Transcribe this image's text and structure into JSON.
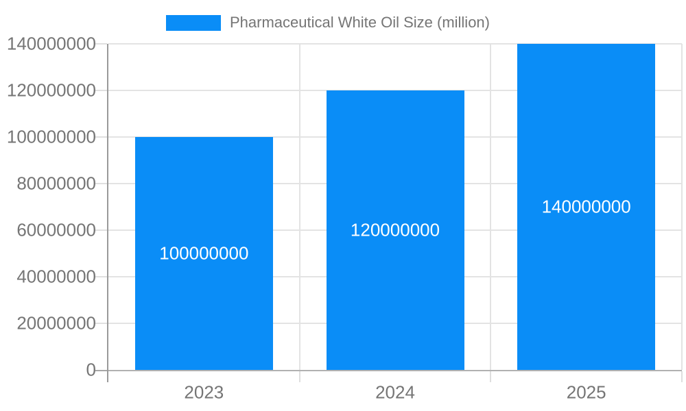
{
  "legend": {
    "label": "Pharmaceutical White Oil Size (million)"
  },
  "colors": {
    "bar": "#0a8df7",
    "bar_label": "#ffffff",
    "axis_text": "#757575",
    "grid": "#e3e3e3",
    "background": "#ffffff"
  },
  "chart_data": {
    "type": "bar",
    "title": "Pharmaceutical White Oil Size (million)",
    "categories": [
      "2023",
      "2024",
      "2025"
    ],
    "values": [
      100000000,
      120000000,
      140000000
    ],
    "data_labels": [
      "100000000",
      "120000000",
      "140000000"
    ],
    "y_tick_values": [
      0,
      20000000,
      40000000,
      60000000,
      80000000,
      100000000,
      120000000,
      140000000
    ],
    "y_tick_labels": [
      "0",
      "20000000",
      "40000000",
      "60000000",
      "80000000",
      "100000000",
      "120000000",
      "140000000"
    ],
    "ylim": [
      0,
      140000000
    ],
    "xlabel": "",
    "ylabel": "",
    "grid": true,
    "legend_position": "top"
  }
}
